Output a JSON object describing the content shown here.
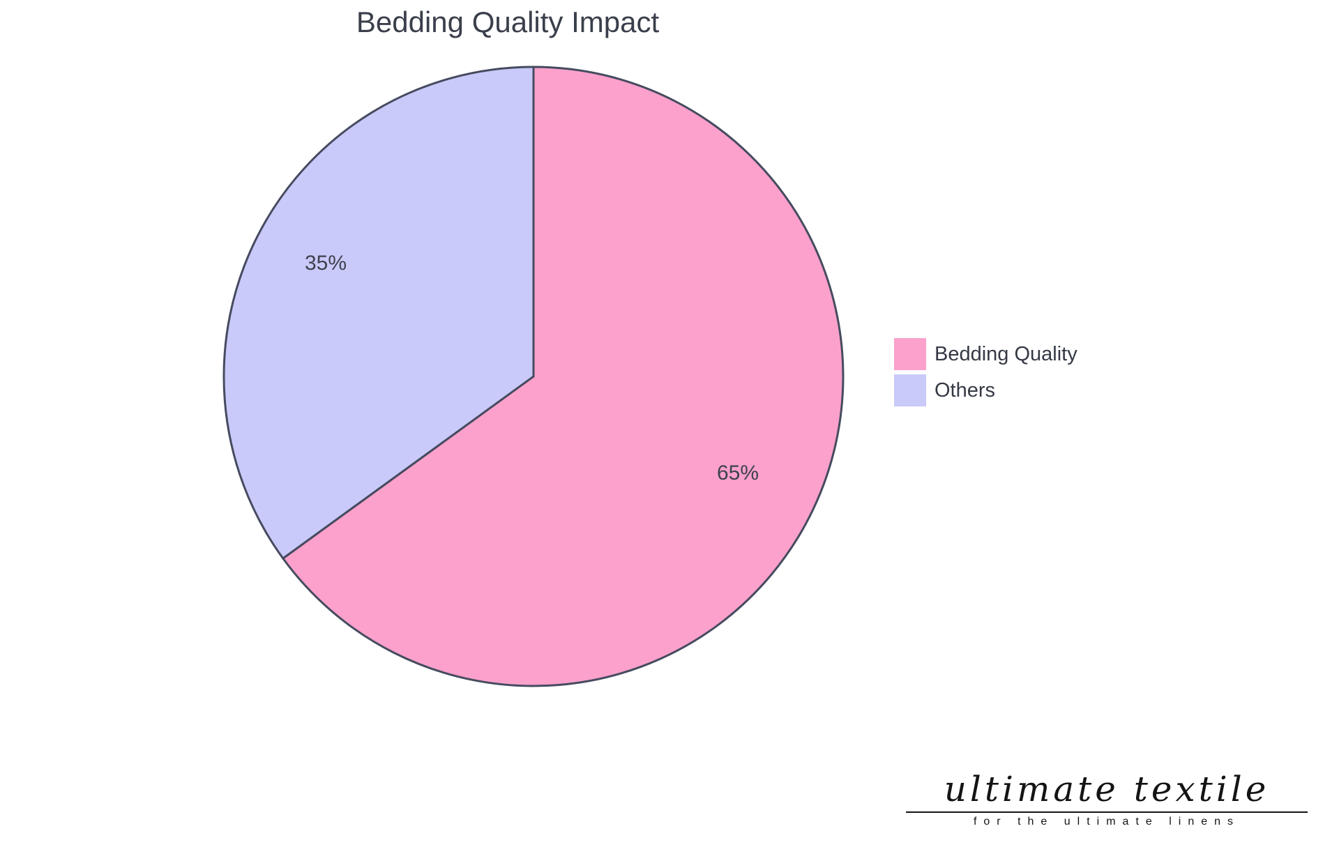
{
  "page": {
    "background": "#ffffff"
  },
  "chart_data": {
    "type": "pie",
    "title": "Bedding Quality Impact",
    "labels": [
      "Bedding Quality",
      "Others"
    ],
    "values": [
      65,
      35
    ],
    "slice_labels": [
      "65%",
      "35%"
    ],
    "colors": [
      "#FBA1CC",
      "#C9CAF9"
    ],
    "stroke_color": "#464B5F",
    "stroke_width": 3,
    "start_angle": "top",
    "direction": "clockwise",
    "legend_position": "right-middle",
    "title_color": "#3a3f4b",
    "label_color": "#3d424e"
  },
  "legend": {
    "items": [
      {
        "label": "Bedding Quality",
        "color": "#FBA1CC"
      },
      {
        "label": "Others",
        "color": "#C9CAF9"
      }
    ]
  },
  "branding": {
    "wordmark": "ultimate textile",
    "tagline": "for the ultimate linens"
  }
}
